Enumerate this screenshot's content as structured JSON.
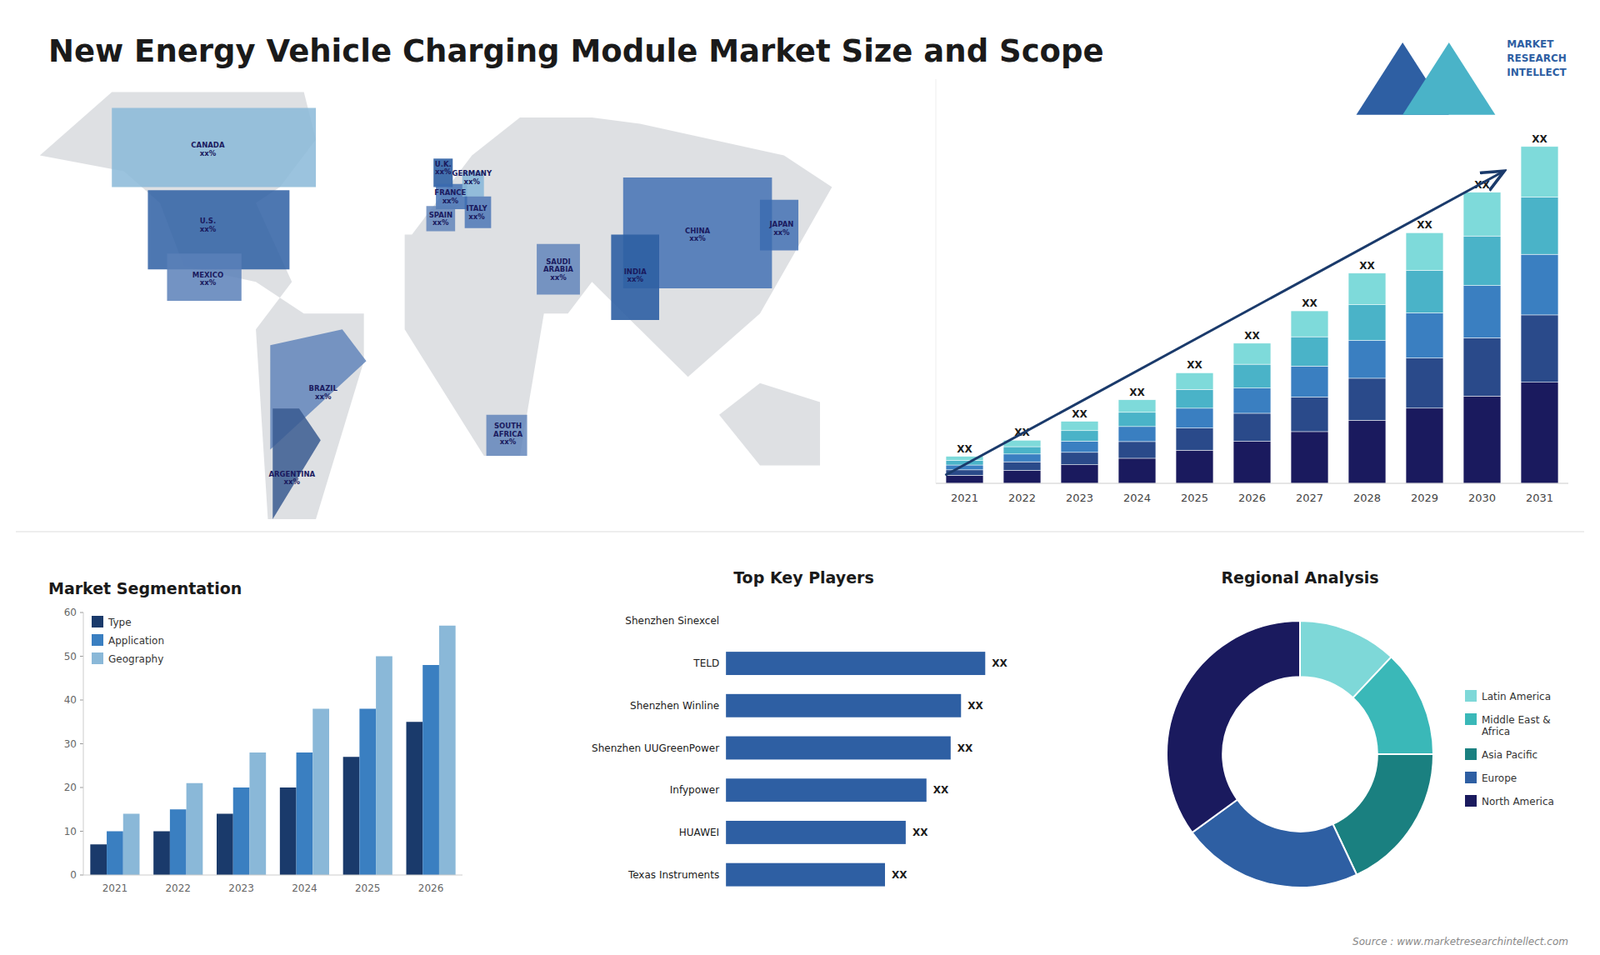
{
  "title": "New Energy Vehicle Charging Module Market Size and Scope",
  "annotations": [
    "Source : www.marketresearchintellect.com",
    "MARKET\nRESEARCH\nINTELLECT"
  ],
  "chart_data": [
    {
      "type": "map",
      "xlim": [
        -180,
        180
      ],
      "ylim": [
        -60,
        82
      ],
      "tick_labels": false,
      "annotations": [
        {
          "text": "U.S.\nxx%",
          "x": -100,
          "y": 38
        },
        {
          "text": "CANADA\nxx%",
          "x": -100,
          "y": 62
        },
        {
          "text": "MEXICO\nxx%",
          "x": -100,
          "y": 21
        },
        {
          "text": "BRAZIL\nxx%",
          "x": -52,
          "y": -15
        },
        {
          "text": "ARGENTINA\nxx%",
          "x": -65,
          "y": -42
        },
        {
          "text": "U.K.\nxx%",
          "x": -2,
          "y": 56
        },
        {
          "text": "FRANCE\nxx%",
          "x": 1,
          "y": 47
        },
        {
          "text": "GERMANY\nxx%",
          "x": 10,
          "y": 53
        },
        {
          "text": "SPAIN\nxx%",
          "x": -3,
          "y": 40
        },
        {
          "text": "ITALY\nxx%",
          "x": 12,
          "y": 42
        },
        {
          "text": "SAUDI\nARABIA\nxx%",
          "x": 46,
          "y": 24
        },
        {
          "text": "SOUTH\nAFRICA\nxx%",
          "x": 25,
          "y": -28
        },
        {
          "text": "CHINA\nxx%",
          "x": 104,
          "y": 35
        },
        {
          "text": "INDIA\nxx%",
          "x": 78,
          "y": 22
        },
        {
          "text": "JAPAN\nxx%",
          "x": 139,
          "y": 37
        }
      ]
    },
    {
      "type": "bar",
      "stacked": true,
      "categories": [
        "2021",
        "2022",
        "2023",
        "2024",
        "2025",
        "2026",
        "2027",
        "2028",
        "2029",
        "2030",
        "2031"
      ],
      "series": [
        {
          "color": "#1a1a5e",
          "values": [
            0.3,
            0.48,
            0.69,
            0.93,
            1.23,
            1.56,
            1.92,
            2.34,
            2.79,
            3.24,
            3.75
          ]
        },
        {
          "color": "#2a4a8a",
          "values": [
            0.2,
            0.32,
            0.46,
            0.62,
            0.82,
            1.04,
            1.28,
            1.56,
            1.86,
            2.16,
            2.5
          ]
        },
        {
          "color": "#3a7fc1",
          "values": [
            0.18,
            0.288,
            0.414,
            0.558,
            0.738,
            0.936,
            1.152,
            1.404,
            1.674,
            1.944,
            2.25
          ]
        },
        {
          "color": "#4ab3c8",
          "values": [
            0.17,
            0.272,
            0.391,
            0.527,
            0.697,
            0.884,
            1.088,
            1.326,
            1.581,
            1.836,
            2.125
          ]
        },
        {
          "color": "#7edada",
          "values": [
            0.15,
            0.24,
            0.345,
            0.465,
            0.615,
            0.78,
            0.96,
            1.17,
            1.395,
            1.62,
            1.875
          ]
        }
      ],
      "data_labels": true,
      "value_labels": [
        "XX",
        "XX",
        "XX",
        "XX",
        "XX",
        "XX",
        "XX",
        "XX",
        "XX",
        "XX",
        "XX"
      ],
      "ylim": [
        0,
        15
      ],
      "tick_labels": "x"
    },
    {
      "type": "bar",
      "title": "Market Segmentation",
      "categories": [
        "2021",
        "2022",
        "2023",
        "2024",
        "2025",
        "2026"
      ],
      "series": [
        {
          "name": "Type",
          "color": "#1a3a6b",
          "values": [
            7,
            10,
            14,
            20,
            27,
            35
          ]
        },
        {
          "name": "Application",
          "color": "#3a7fc1",
          "values": [
            10,
            15,
            20,
            28,
            38,
            48
          ]
        },
        {
          "name": "Geography",
          "color": "#8ab8d8",
          "values": [
            14,
            21,
            28,
            38,
            50,
            57
          ]
        }
      ],
      "ylim": [
        0,
        60
      ],
      "yticks": [
        0,
        10,
        20,
        30,
        40,
        50,
        60
      ],
      "legend": "upper left",
      "grid": false
    },
    {
      "type": "bar",
      "orientation": "horizontal",
      "title": "Top Key Players",
      "categories": [
        "Shenzhen Sinexcel",
        "TELD",
        "Shenzhen Winline",
        "Shenzhen UUGreenPower",
        "Infypower",
        "HUAWEI",
        "Texas Instruments"
      ],
      "values": [
        0,
        75,
        68,
        65,
        58,
        52,
        46
      ],
      "color": "#2e5fa3",
      "data_labels": true,
      "value_labels": [
        null,
        "XX",
        "XX",
        "XX",
        "XX",
        "XX",
        "XX"
      ],
      "xlim": [
        -55,
        100
      ],
      "tick_labels": false
    },
    {
      "type": "donut",
      "title": "Regional Analysis",
      "categories": [
        "Latin America",
        "Middle East &\nAfrica",
        "Asia Pacific",
        "Europe",
        "North America"
      ],
      "values": [
        12,
        13,
        18,
        22,
        35
      ],
      "colors": [
        "#7ed8d8",
        "#3ab8b8",
        "#1a8080",
        "#2e5fa3",
        "#1a1a5e"
      ],
      "legend": "right"
    }
  ]
}
